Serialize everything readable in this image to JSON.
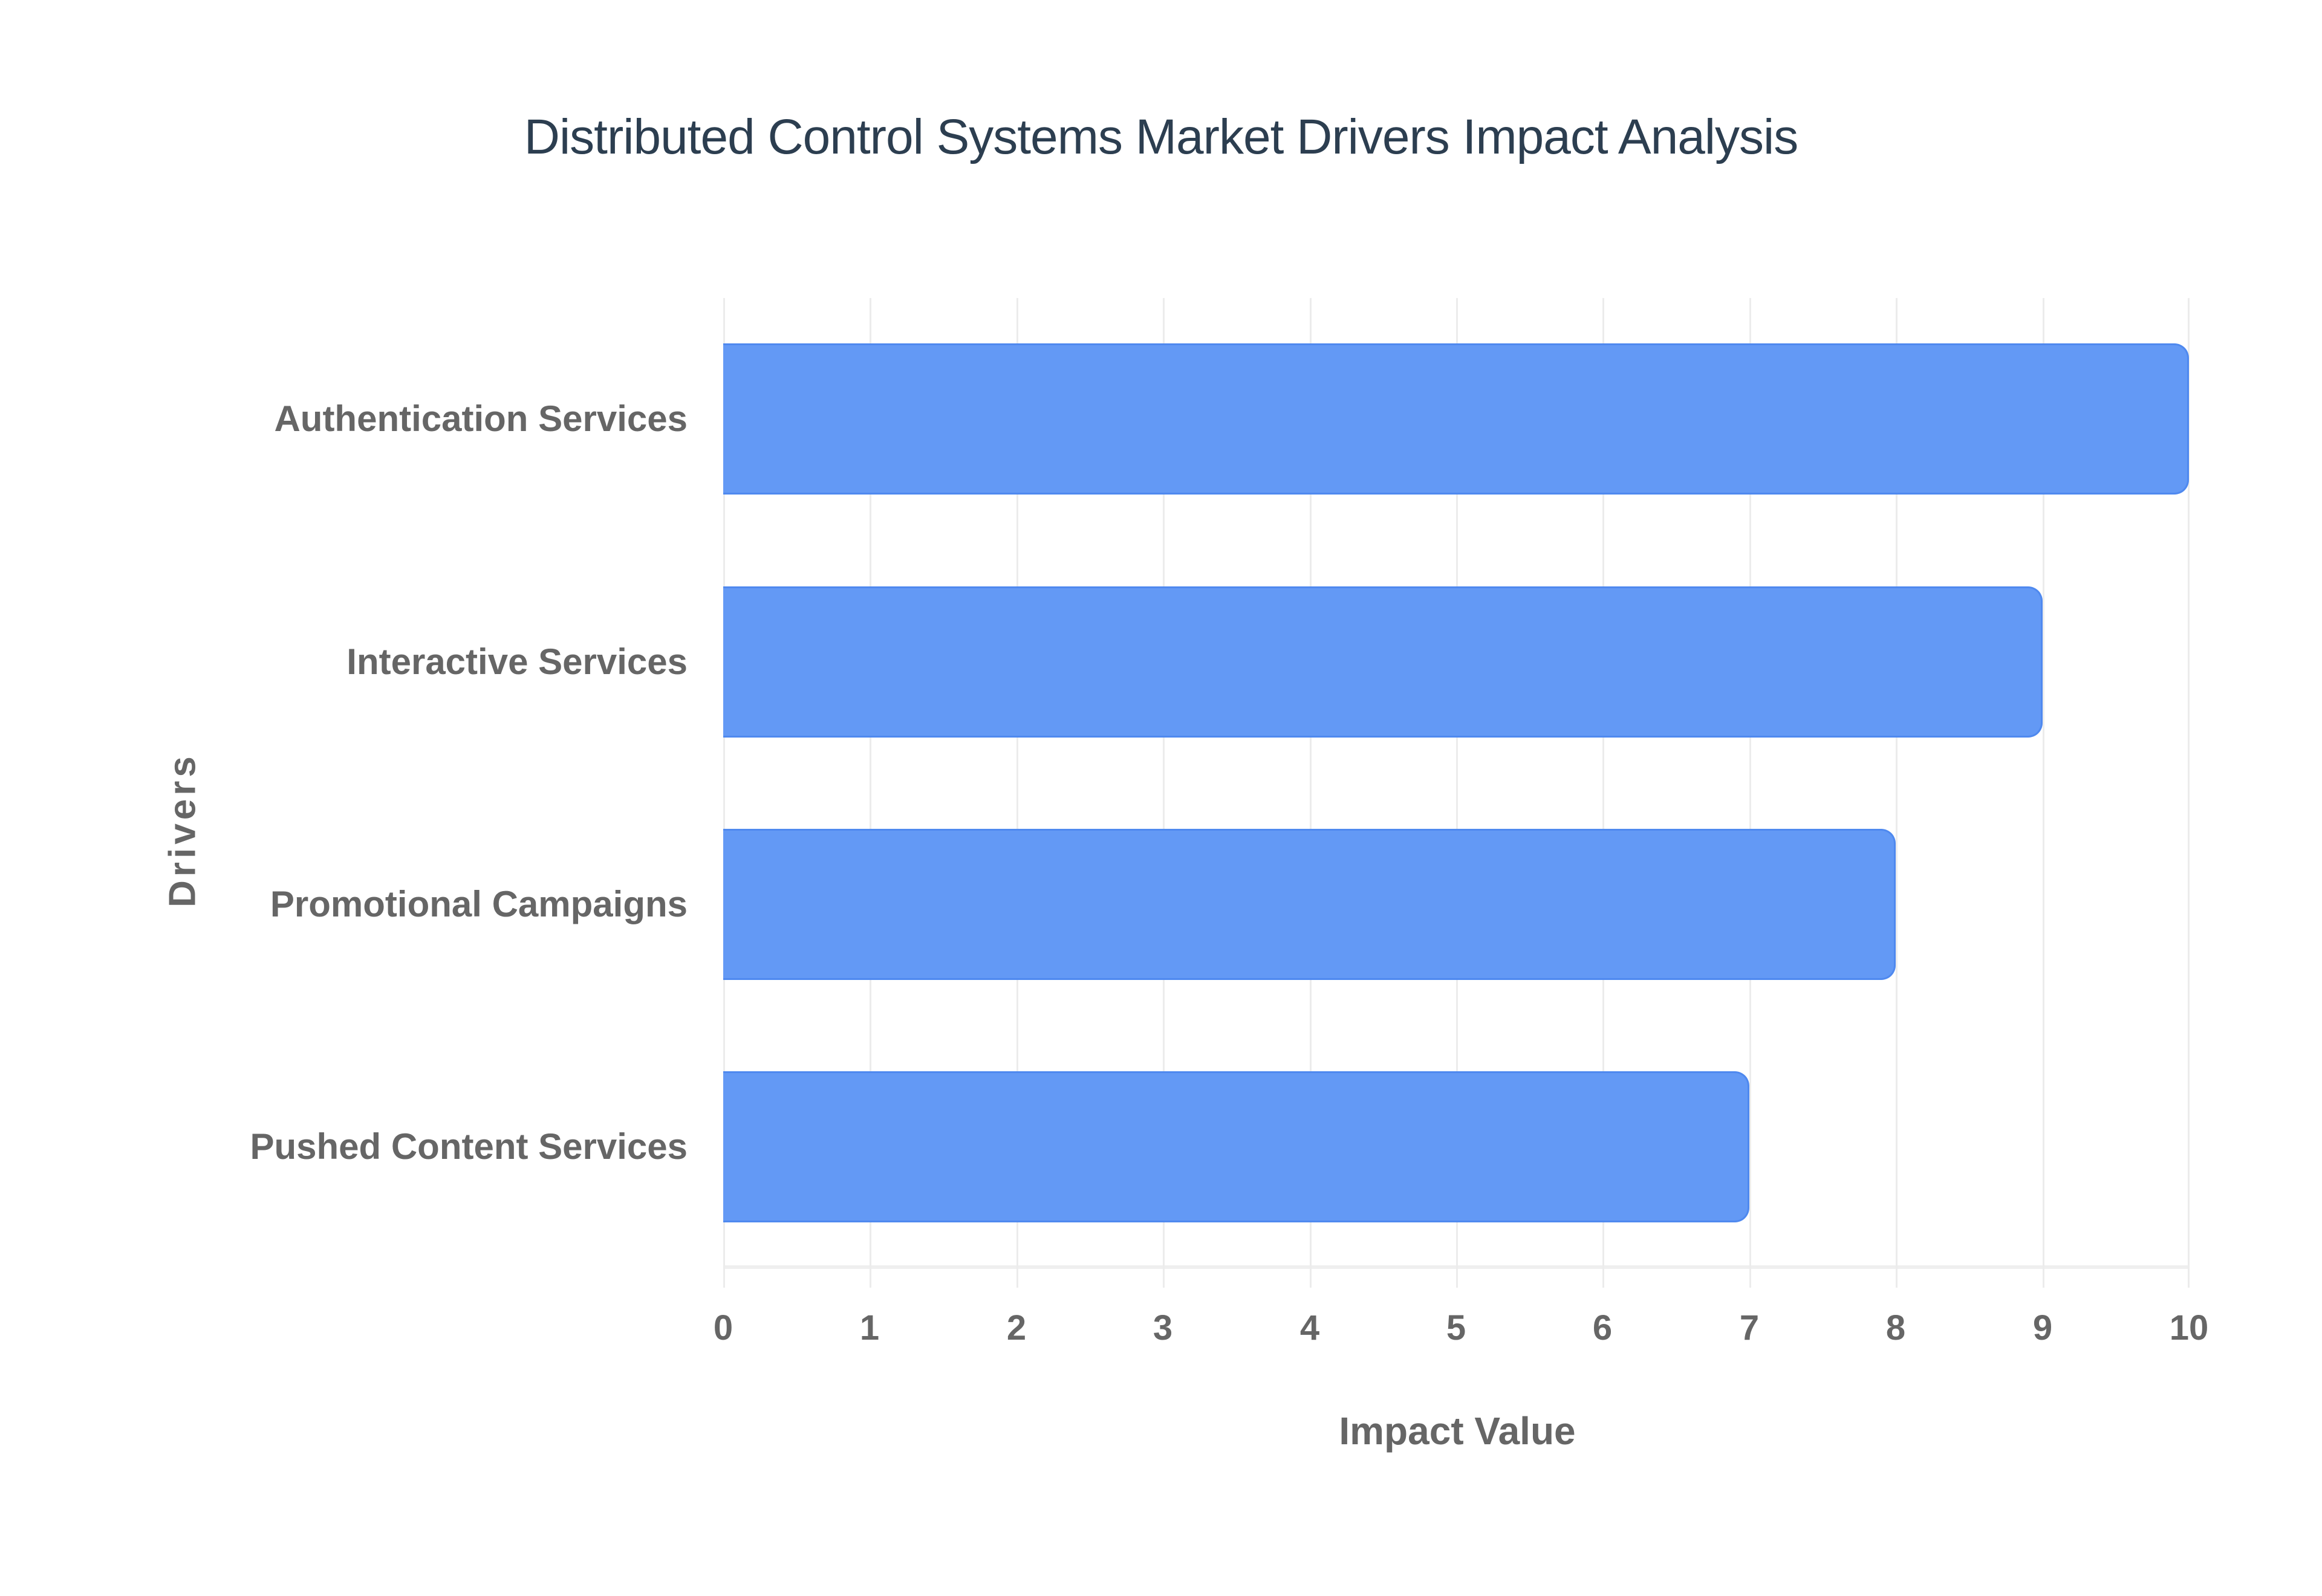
{
  "title": "Distributed Control Systems Market Drivers Impact Analysis",
  "colors": {
    "bar_fill": "#6399f5",
    "bar_border": "#4f89ef",
    "title": "#2c3e50",
    "axis_text": "#666666",
    "grid": "#ececec"
  },
  "axes": {
    "x": {
      "label": "Impact Value",
      "ticks": [
        "0",
        "1",
        "2",
        "3",
        "4",
        "5",
        "6",
        "7",
        "8",
        "9",
        "10"
      ]
    },
    "y": {
      "label": "Drivers",
      "ticks": [
        "Authentication Services",
        "Interactive Services",
        "Promotional Campaigns",
        "Pushed Content Services"
      ]
    }
  },
  "chart_data": {
    "type": "bar",
    "orientation": "horizontal",
    "title": "Distributed Control Systems Market Drivers Impact Analysis",
    "xlabel": "Impact Value",
    "ylabel": "Drivers",
    "categories": [
      "Authentication Services",
      "Interactive Services",
      "Promotional Campaigns",
      "Pushed Content Services"
    ],
    "values": [
      10,
      9,
      8,
      7
    ],
    "xlim": [
      0,
      10
    ],
    "grid": true,
    "legend": null
  }
}
